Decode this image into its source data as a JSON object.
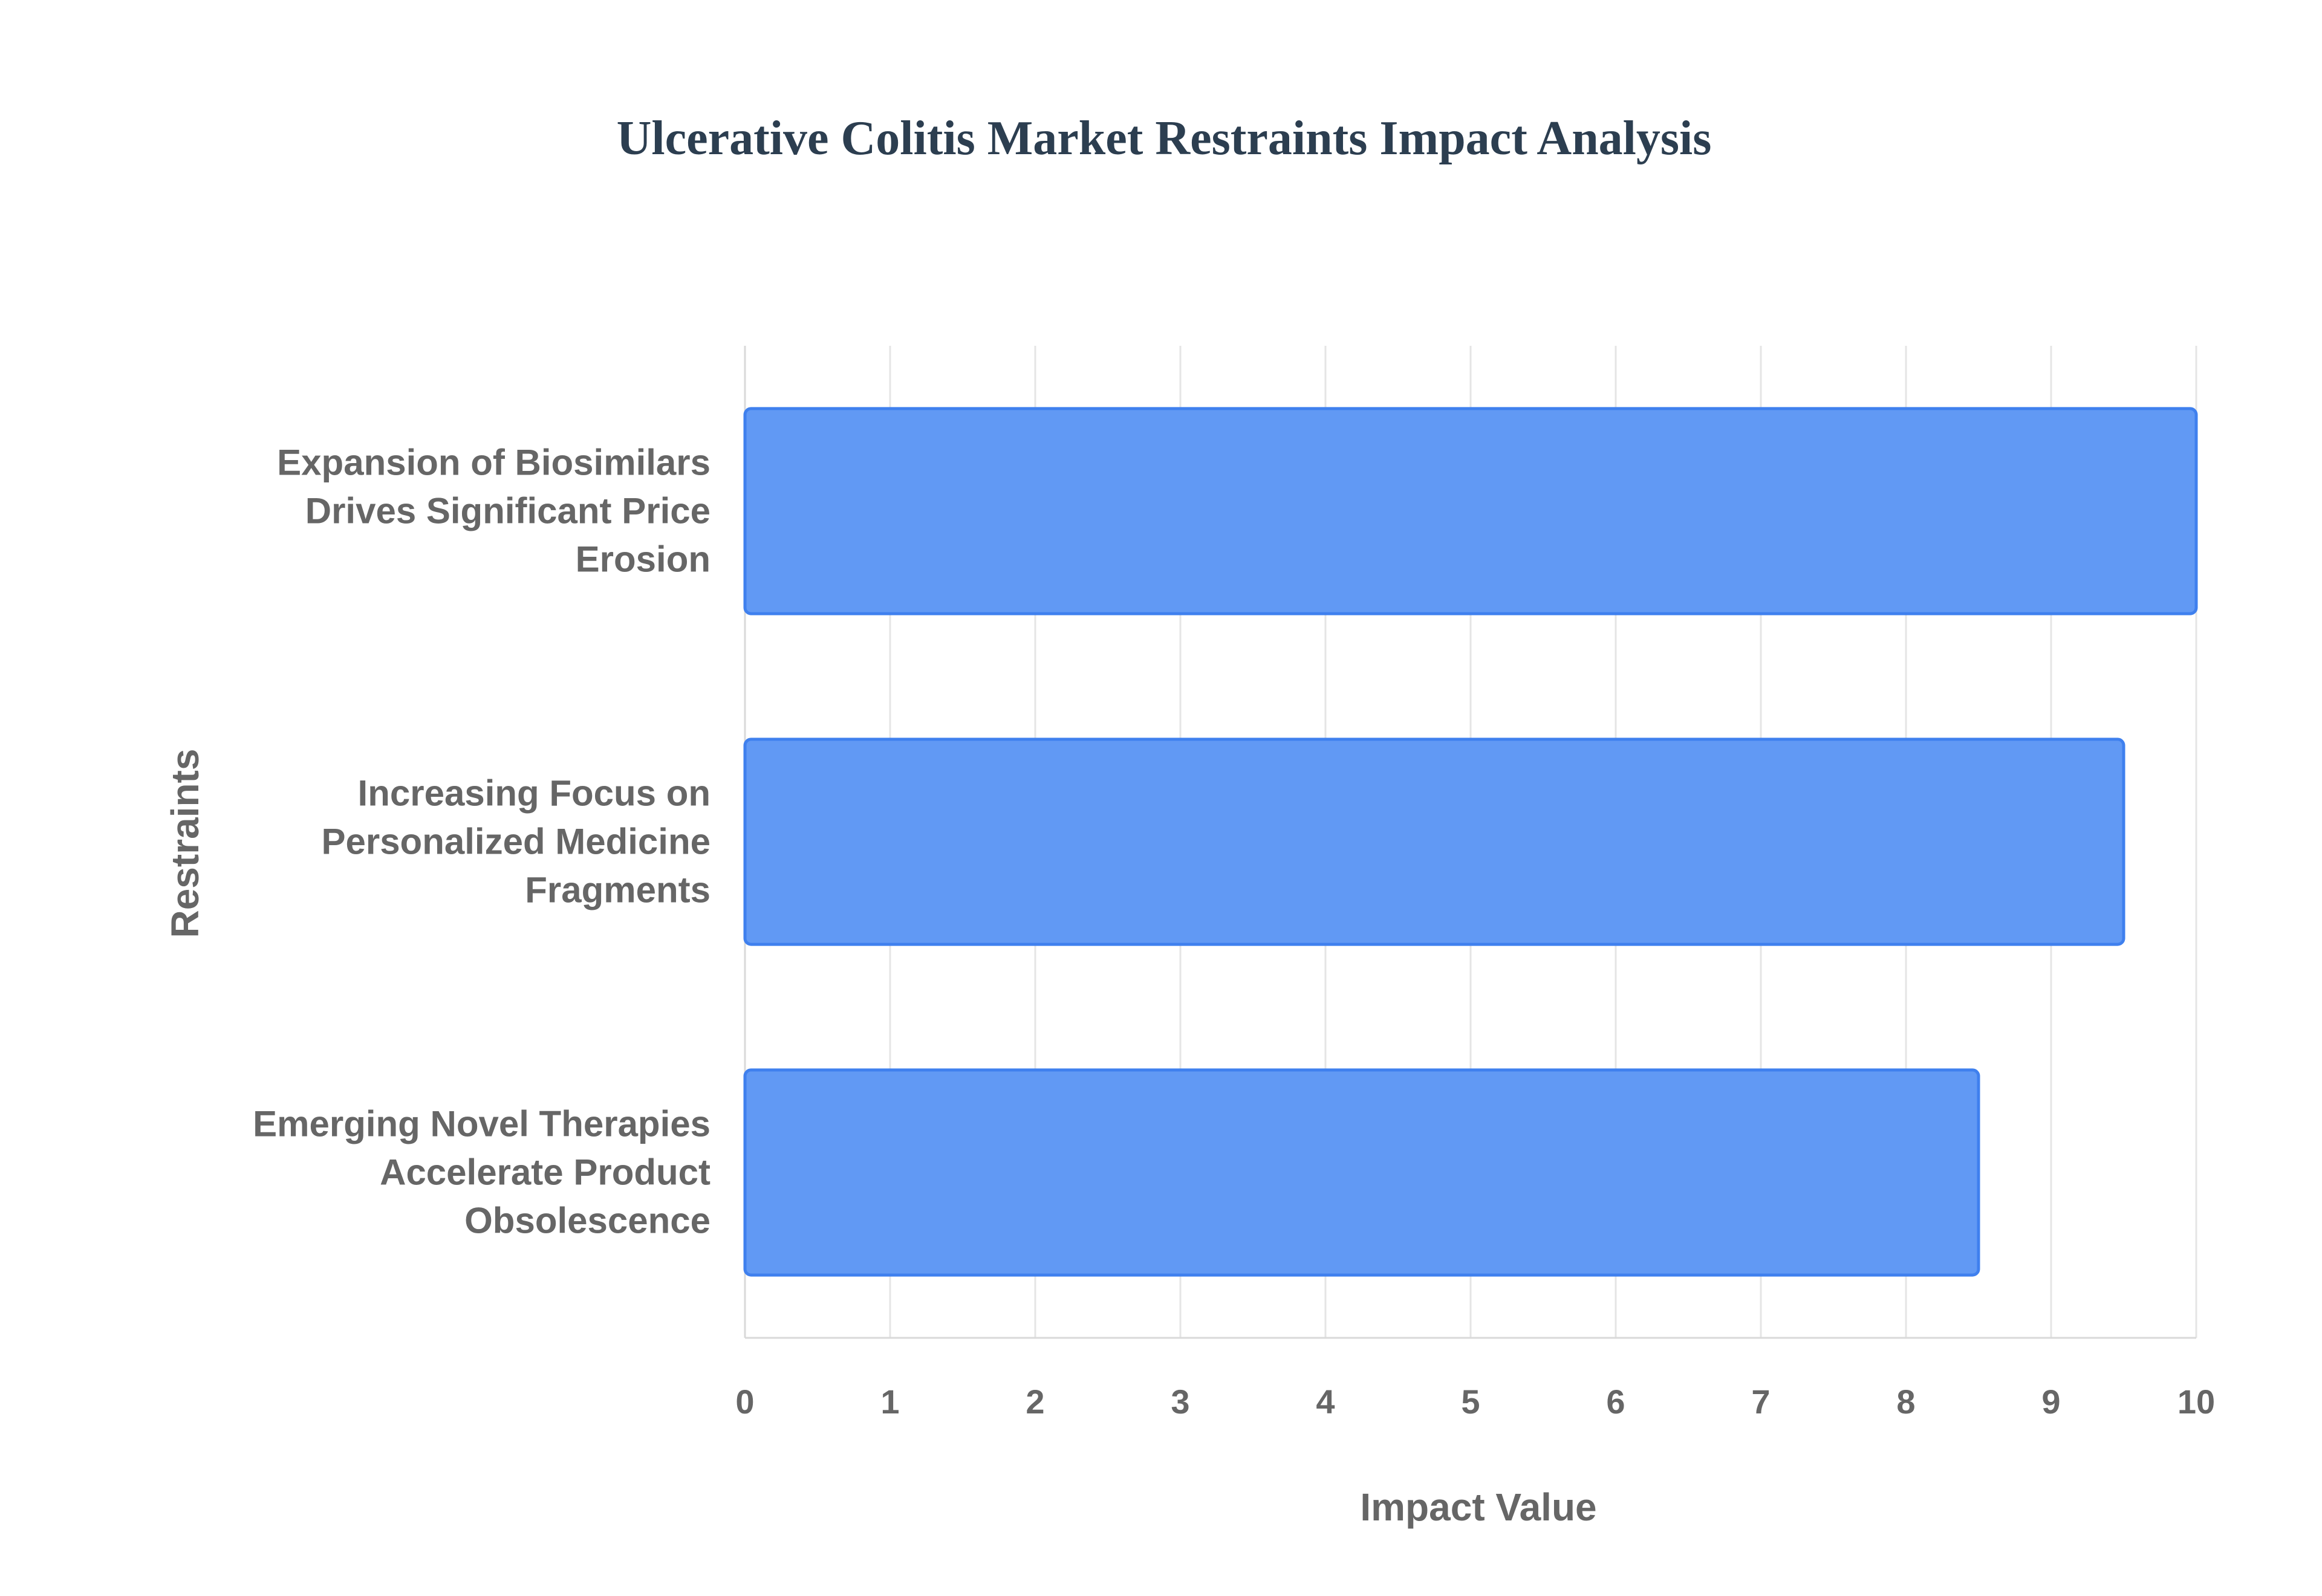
{
  "chart_data": {
    "type": "bar",
    "orientation": "horizontal",
    "title": "Ulcerative Colitis Market Restraints Impact Analysis",
    "xlabel": "Impact Value",
    "ylabel": "Restraints",
    "categories": [
      [
        "Expansion of Biosimilars",
        "Drives Significant Price",
        "Erosion"
      ],
      [
        "Increasing Focus on",
        "Personalized Medicine",
        "Fragments"
      ],
      [
        "Emerging Novel Therapies",
        "Accelerate Product",
        "Obsolescence"
      ]
    ],
    "values": [
      10,
      9.5,
      8.5
    ],
    "xlim": [
      0,
      10
    ],
    "xticks": [
      "0",
      "1",
      "2",
      "3",
      "4",
      "5",
      "6",
      "7",
      "8",
      "9",
      "10"
    ],
    "grid": true,
    "legend": "none",
    "colors": {
      "bar_fill": "#6199f4",
      "bar_stroke": "#3f80ee",
      "title": "#2c3e50",
      "text": "#666666",
      "grid": "#e5e5e5"
    }
  }
}
